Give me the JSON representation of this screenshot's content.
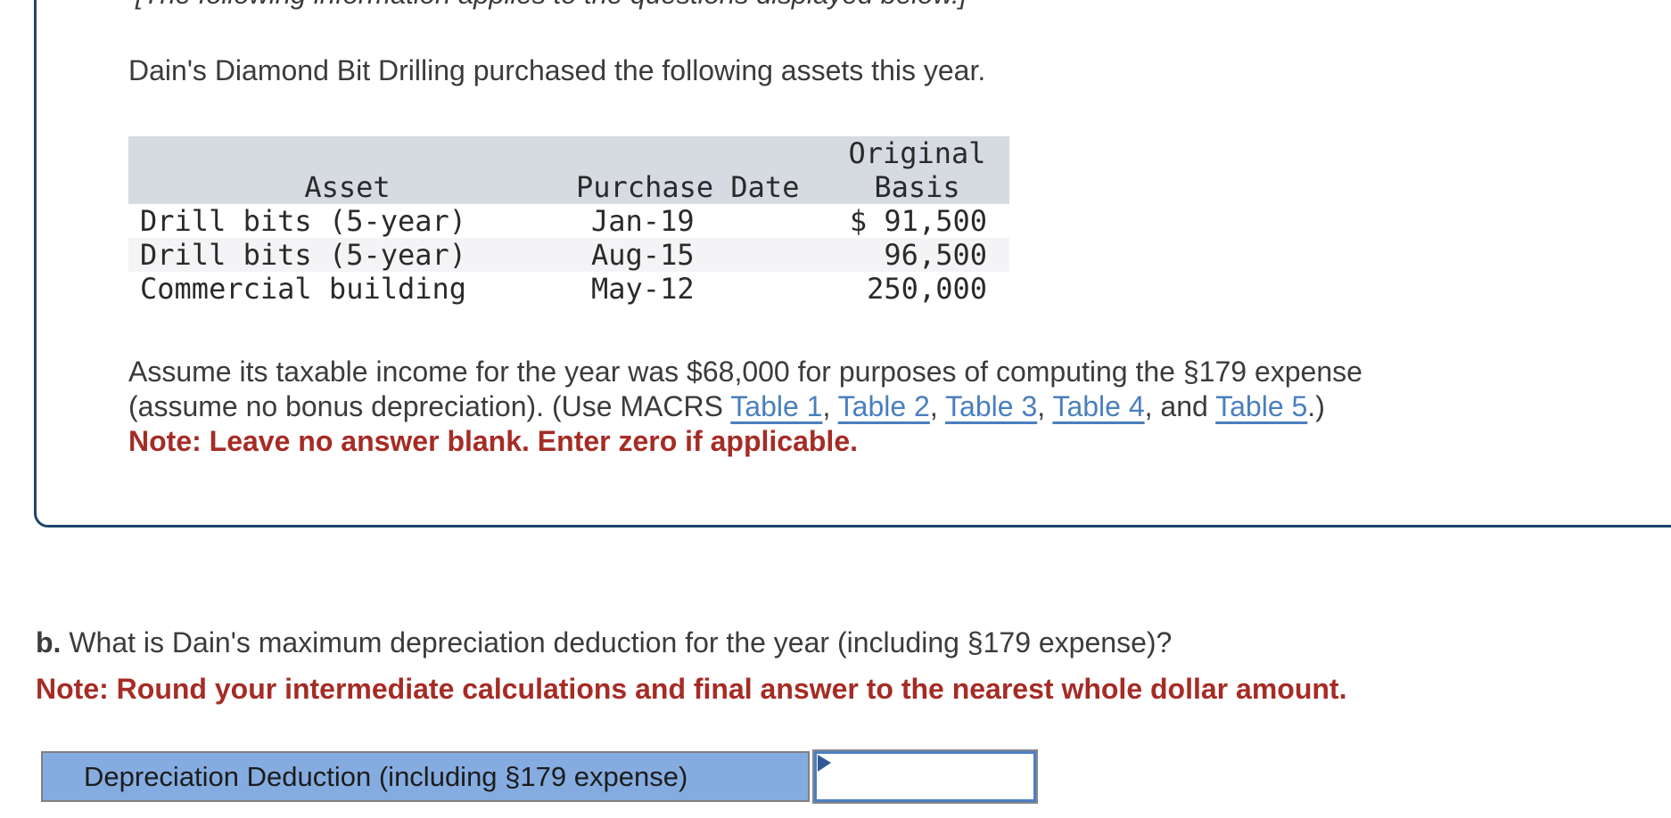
{
  "page": {
    "clipped_instruction": "[The following information applies to the questions displayed below.]"
  },
  "box": {
    "intro": "Dain's Diamond Bit Drilling purchased the following assets this year.",
    "table": {
      "headers": {
        "asset": "Asset",
        "purchase_date": "Purchase Date",
        "basis_line1": "Original",
        "basis_line2": "Basis"
      },
      "rows": [
        {
          "asset": "Drill bits (5-year)",
          "purchase_date": "Jan-19",
          "basis": "$ 91,500"
        },
        {
          "asset": "Drill bits (5-year)",
          "purchase_date": "Aug-15",
          "basis": "96,500"
        },
        {
          "asset": "Commercial building",
          "purchase_date": "May-12",
          "basis": "250,000"
        }
      ]
    },
    "para_line1": "Assume its taxable income for the year was $68,000 for purposes of computing the §179 expense",
    "para_line2_prefix": "(assume no bonus depreciation). (Use MACRS ",
    "links": [
      "Table 1",
      "Table 2",
      "Table 3",
      "Table 4",
      "Table 5"
    ],
    "sep_comma": ", ",
    "sep_and": ", and ",
    "para_line2_suffix": ".)",
    "note": "Note: Leave no answer blank. Enter zero if applicable."
  },
  "question": {
    "label": "b.",
    "text": " What is Dain's maximum depreciation deduction for the year (including §179 expense)?",
    "note": "Note: Round your intermediate calculations and final answer to the nearest whole dollar amount."
  },
  "answer": {
    "label": "Depreciation Deduction (including §179 expense)",
    "input_value": ""
  },
  "colors": {
    "box_border": "#1e466f",
    "table_header_bg": "#d6dae1",
    "table_stripe_bg": "#f4f4f6",
    "link_blue": "#4a7fbe",
    "note_red": "#a52c25",
    "answer_cell_blue": "#85ace0",
    "answer_cell_border": "#808080",
    "input_border_blue": "#4e7fc1",
    "marker_navy": "#2e5a97"
  }
}
